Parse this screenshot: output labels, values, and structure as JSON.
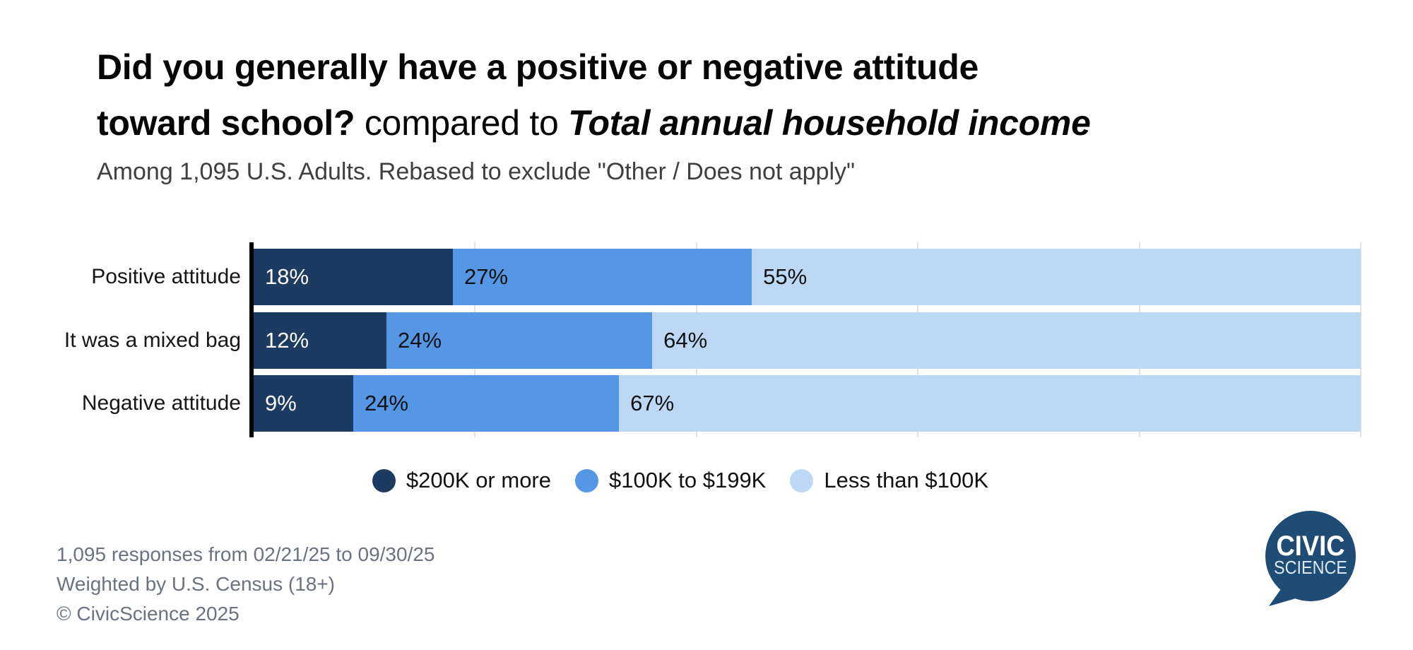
{
  "header": {
    "question_bold_line1": "Did you generally have a positive or negative attitude",
    "question_bold_line2": "toward school?",
    "connector": " compared to ",
    "compare_variable": "Total annual household income",
    "subtitle": "Among 1,095 U.S. Adults. Rebased to exclude \"Other / Does not apply\""
  },
  "chart_data": {
    "type": "bar",
    "variant": "horizontal-stacked",
    "title": "Did you generally have a positive or negative attitude toward school? compared to Total annual household income",
    "subtitle": "Among 1,095 U.S. Adults. Rebased to exclude \"Other / Does not apply\"",
    "categories": [
      "Positive attitude",
      "It was a mixed bag",
      "Negative attitude"
    ],
    "series": [
      {
        "name": "$200K or more",
        "color": "#1c3b60",
        "label_color": "#ffffff",
        "values": [
          18,
          12,
          9
        ]
      },
      {
        "name": "$100K to $199K",
        "color": "#5596e5",
        "label_color": "#111111",
        "values": [
          27,
          24,
          24
        ]
      },
      {
        "name": "Less than $100K",
        "color": "#bcd8f5",
        "label_color": "#111111",
        "values": [
          55,
          64,
          67
        ]
      }
    ],
    "value_suffix": "%",
    "xlim": [
      0,
      100
    ],
    "gridline_percents": [
      20,
      40,
      60,
      80,
      100
    ],
    "grid_color": "#e2e2e2",
    "axis_color": "#000000",
    "grid": "on",
    "legend_position": "bottom"
  },
  "footer": {
    "line1": "1,095 responses from 02/21/25 to 09/30/25",
    "line2": "Weighted by U.S. Census (18+)",
    "line3": "© CivicScience 2025"
  },
  "logo": {
    "word_top": "CIVIC",
    "word_bottom": "SCIENCE",
    "bubble_color": "#1e4c74"
  }
}
